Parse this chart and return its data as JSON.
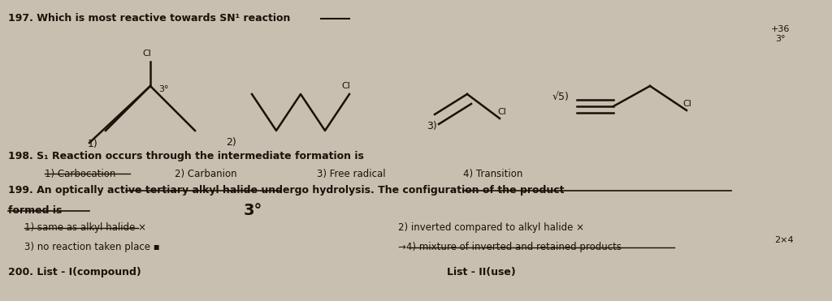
{
  "background_color": "#c8bfb0",
  "text_color": "#1a1208",
  "title_q197": "197. Which is most reactive towards SN¹ reaction",
  "q198_line1": "198. S₁ Reaction occurs through the intermediate formation is",
  "q198_options": [
    "1) Carbocation",
    "2) Carbanion",
    "3) Free radical",
    "4) Transition"
  ],
  "q199_line1": "199. An optically active tertiary alkyl halide undergo hydrolysis. The configuration of the product",
  "q199_line2": "formed is",
  "q199_3deg": "3°",
  "q199_opt1": "1) same as alkyl halide ×",
  "q199_opt2": "2) inverted compared to alkyl halide ×",
  "q199_opt3": "3) no reaction taken place ▪",
  "q199_opt4": "→4) mixture of inverted and retained products",
  "note_topright": "+36\n3°",
  "note_botright": "2×4",
  "bottom_left": "200. List - I(compound)",
  "bottom_right": "List - II(use)"
}
